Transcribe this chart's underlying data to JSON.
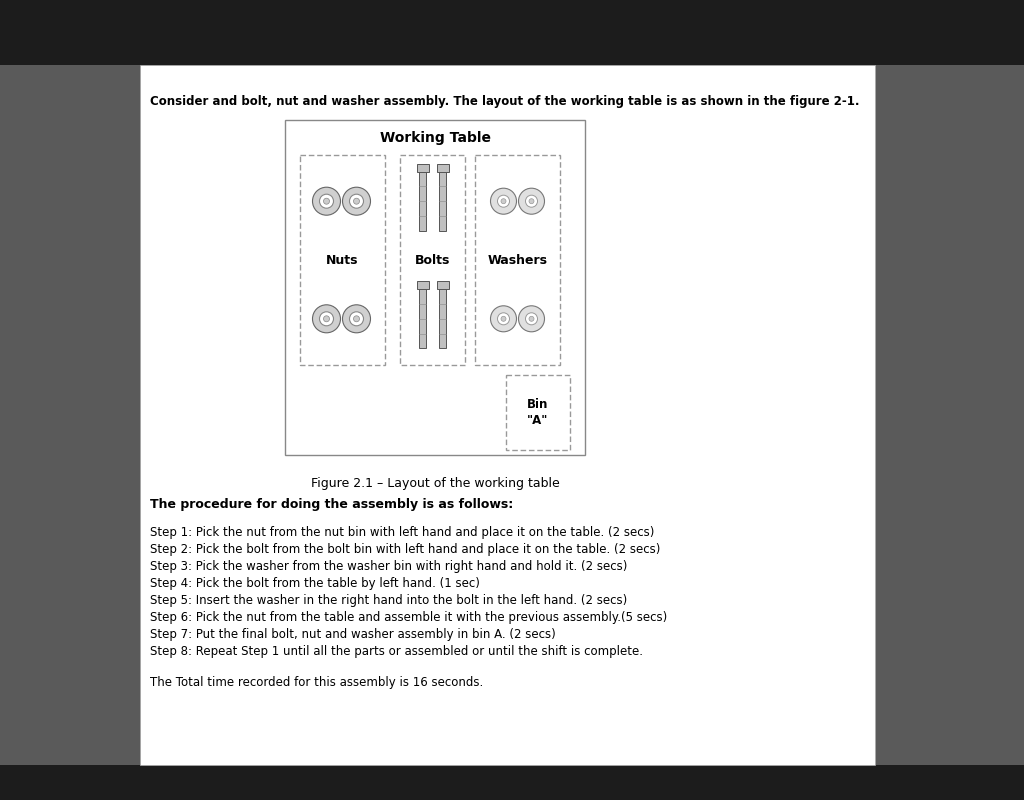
{
  "bg_color_top": "#1a1a1a",
  "bg_color_main": "#5a5a5a",
  "paper_color": "#ffffff",
  "intro_text": "Consider and bolt, nut and washer assembly. The layout of the working table is as shown in the figure 2-1.",
  "table_title": "Working Table",
  "figure_caption": "Figure 2.1 – Layout of the working table",
  "procedure_header": "The procedure for doing the assembly is as follows:",
  "steps": [
    "Step 1: Pick the nut from the nut bin with left hand and place it on the table. (2 secs)",
    "Step 2: Pick the bolt from the bolt bin with left hand and place it on the table. (2 secs)",
    "Step 3: Pick the washer from the washer bin with right hand and hold it. (2 secs)",
    "Step 4: Pick the bolt from the table by left hand. (1 sec)",
    "Step 5: Insert the washer in the right hand into the bolt in the left hand. (2 secs)",
    "Step 6: Pick the nut from the table and assemble it with the previous assembly.(5 secs)",
    "Step 7: Put the final bolt, nut and washer assembly in bin A. (2 secs)",
    "Step 8: Repeat Step 1 until all the parts or assembled or until the shift is complete."
  ],
  "total_time_text": "The Total time recorded for this assembly is 16 seconds.",
  "bin_labels": [
    "Nuts",
    "Bolts",
    "Washers"
  ],
  "bin_a_label": "Bin\n\"A\""
}
